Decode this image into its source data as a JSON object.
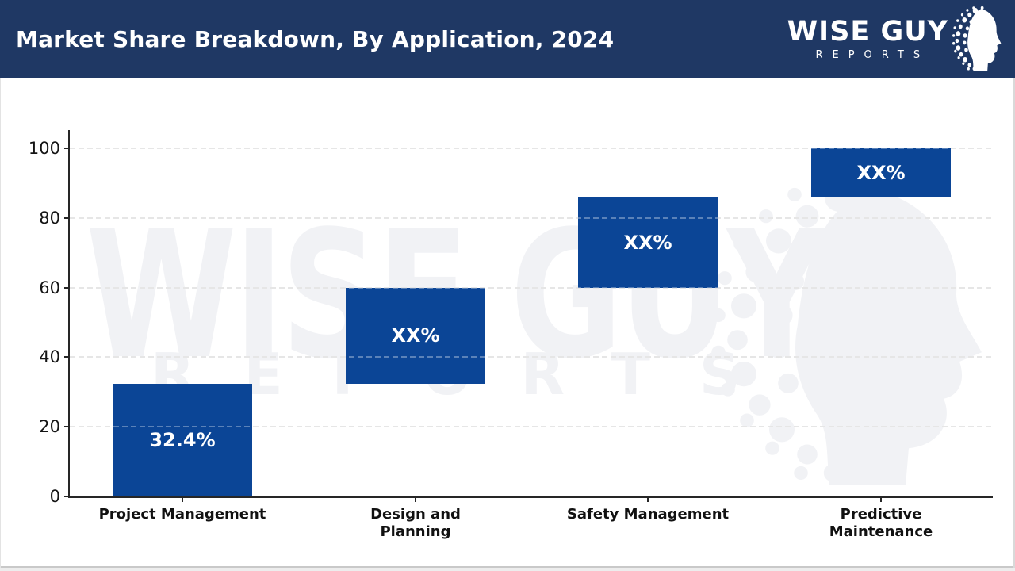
{
  "header": {
    "title": "Market Share Breakdown, By Application, 2024",
    "logo": {
      "line1": "WISE GUY",
      "line2": "REPORTS"
    }
  },
  "watermark": {
    "line1": "WISE GUY",
    "line2": "REPORTS"
  },
  "chart_data": {
    "type": "bar",
    "subtype": "waterfall-floating-bars",
    "title": "Market Share Breakdown, By Application, 2024",
    "categories": [
      "Project Management",
      "Design and Planning",
      "Safety Management",
      "Predictive Maintenance"
    ],
    "category_lines": [
      [
        "Project Management"
      ],
      [
        "Design and",
        "Planning"
      ],
      [
        "Safety Management"
      ],
      [
        "Predictive",
        "Maintenance"
      ]
    ],
    "segments": [
      {
        "category": "Project Management",
        "start": 0,
        "end": 32.4,
        "label": "32.4%"
      },
      {
        "category": "Design and Planning",
        "start": 32.4,
        "end": 60,
        "label": "XX%"
      },
      {
        "category": "Safety Management",
        "start": 60,
        "end": 85.9,
        "label": "XX%"
      },
      {
        "category": "Predictive Maintenance",
        "start": 85.9,
        "end": 100,
        "label": "XX%"
      }
    ],
    "yticks": [
      0,
      20,
      40,
      60,
      80,
      100
    ],
    "ylim": [
      0,
      100
    ],
    "xlabel": "",
    "ylabel": "",
    "grid": "horizontal-dashed",
    "legend": "none"
  },
  "colors": {
    "header_bg": "#1f3864",
    "bar": "#0b4596",
    "bar_label": "#ffffff",
    "axis": "#262626",
    "grid": "#d9d9d9",
    "grid_over_bar": "rgba(255,255,255,0.33)",
    "watermark": "#f1f2f5",
    "page_bg": "#ffffff"
  }
}
